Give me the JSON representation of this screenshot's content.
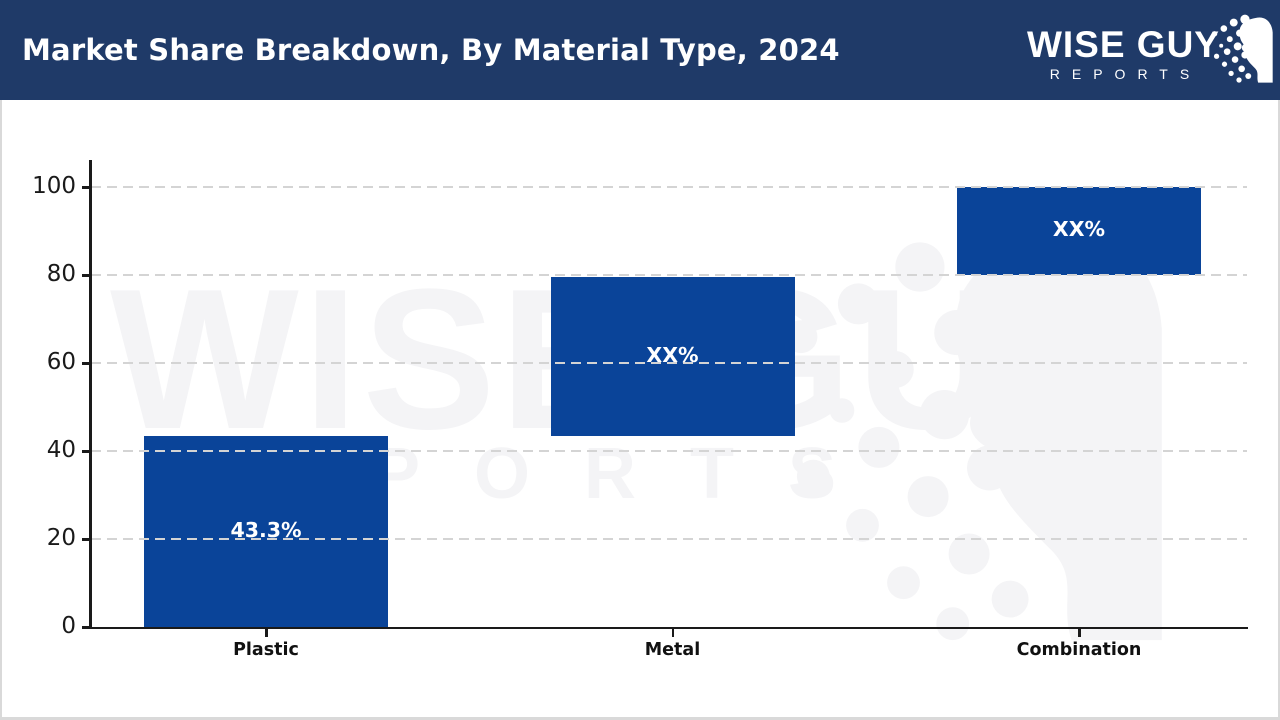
{
  "header": {
    "title": "Market Share Breakdown, By Material Type, 2024",
    "logo": {
      "name": "WISE GUY",
      "sub": "REPORTS"
    }
  },
  "watermark": {
    "name": "WISE GUY",
    "sub": "REPORTS"
  },
  "chart_data": {
    "type": "bar",
    "subtype": "floating-segment-waterfall",
    "title": "Market Share Breakdown, By Material Type, 2024",
    "categories": [
      "Plastic",
      "Metal",
      "Combination"
    ],
    "segments": [
      {
        "category": "Plastic",
        "start": 0,
        "end": 43.3,
        "label": "43.3%"
      },
      {
        "category": "Metal",
        "start": 43.3,
        "end": 79.6,
        "label": "XX%"
      },
      {
        "category": "Combination",
        "start": 80,
        "end": 100,
        "label": "XX%"
      }
    ],
    "yticks": [
      0,
      20,
      40,
      60,
      80,
      100
    ],
    "ylim": [
      0,
      106
    ],
    "xlabel": "",
    "ylabel": "",
    "grid": "horizontal-dashed",
    "legend": "none",
    "bar_color": "#0a4499",
    "bar_label_color": "#ffffff"
  },
  "colors": {
    "header_bg": "#1f3a68",
    "bar_blue": "#0a4499",
    "grid_gray": "#d4d4d4",
    "axis_dark": "#1a1a1a",
    "watermark_gray": "#f4f4f6",
    "page_border": "#d9d9d9",
    "title_text": "#ffffff"
  }
}
